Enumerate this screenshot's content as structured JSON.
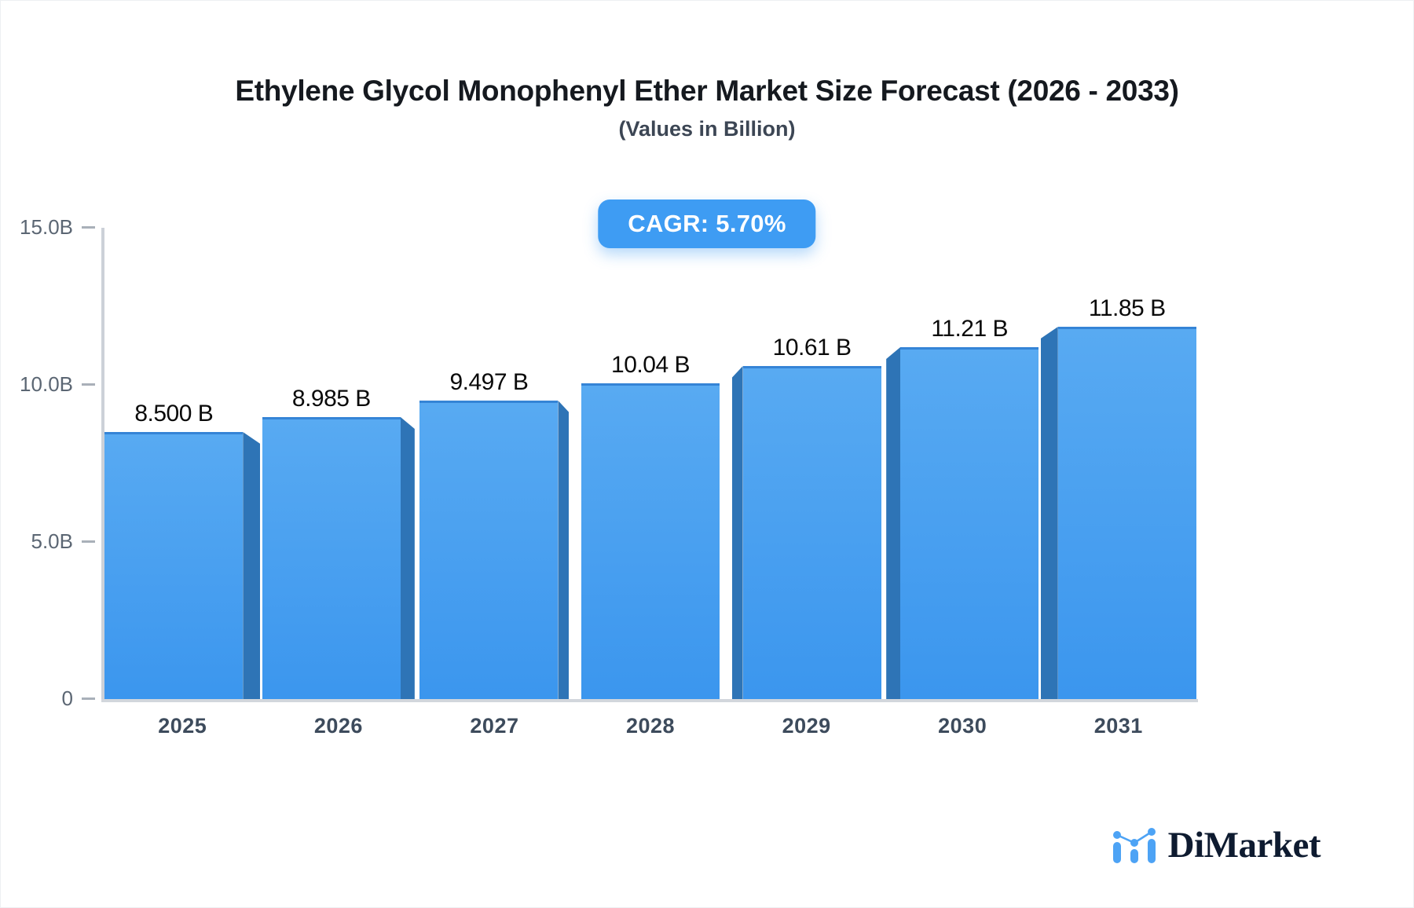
{
  "header": {
    "title": "Ethylene Glycol Monophenyl Ether Market Size Forecast (2026 - 2033)",
    "subtitle": "(Values in Billion)",
    "cagr_label": "CAGR: 5.70%"
  },
  "chart_data": {
    "type": "bar",
    "title": "Ethylene Glycol Monophenyl Ether Market Size Forecast (2026 - 2033)",
    "subtitle": "(Values in Billion)",
    "unit": "Billion",
    "cagr_percent": 5.7,
    "categories": [
      "2025",
      "2026",
      "2027",
      "2028",
      "2029",
      "2030",
      "2031"
    ],
    "values": [
      8.5,
      8.985,
      9.497,
      10.04,
      10.61,
      11.21,
      11.85
    ],
    "value_labels": [
      "8.500 B",
      "8.985 B",
      "9.497 B",
      "10.04 B",
      "10.61 B",
      "11.21 B",
      "11.85 B"
    ],
    "ylim": [
      0,
      15
    ],
    "yticks": [
      {
        "value": 0,
        "label": "0"
      },
      {
        "value": 5,
        "label": "5.0B"
      },
      {
        "value": 10,
        "label": "10.0B"
      },
      {
        "value": 15,
        "label": "15.0B"
      }
    ],
    "grid": false,
    "legend": false,
    "xlabel": "",
    "ylabel": ""
  },
  "footer": {
    "logo_text": "DiMarket"
  },
  "colors": {
    "accent_blue": "#3e9cf3",
    "bar_top": "#58aaf2",
    "bar_bottom": "#3b96ee",
    "bar_edge": "#3584d6",
    "bar_side": "#2e74b6",
    "badge_bg": "#3e9cf3",
    "badge_text": "#ffffff",
    "logo_icon": "#4da3f5",
    "logo_text": "#0e1b30",
    "axis_line": "#ccd1d8",
    "tick_text": "#5b6673",
    "year_text": "#3d4b5c",
    "value_text": "#0a0a0a",
    "title_text": "#15191f"
  }
}
